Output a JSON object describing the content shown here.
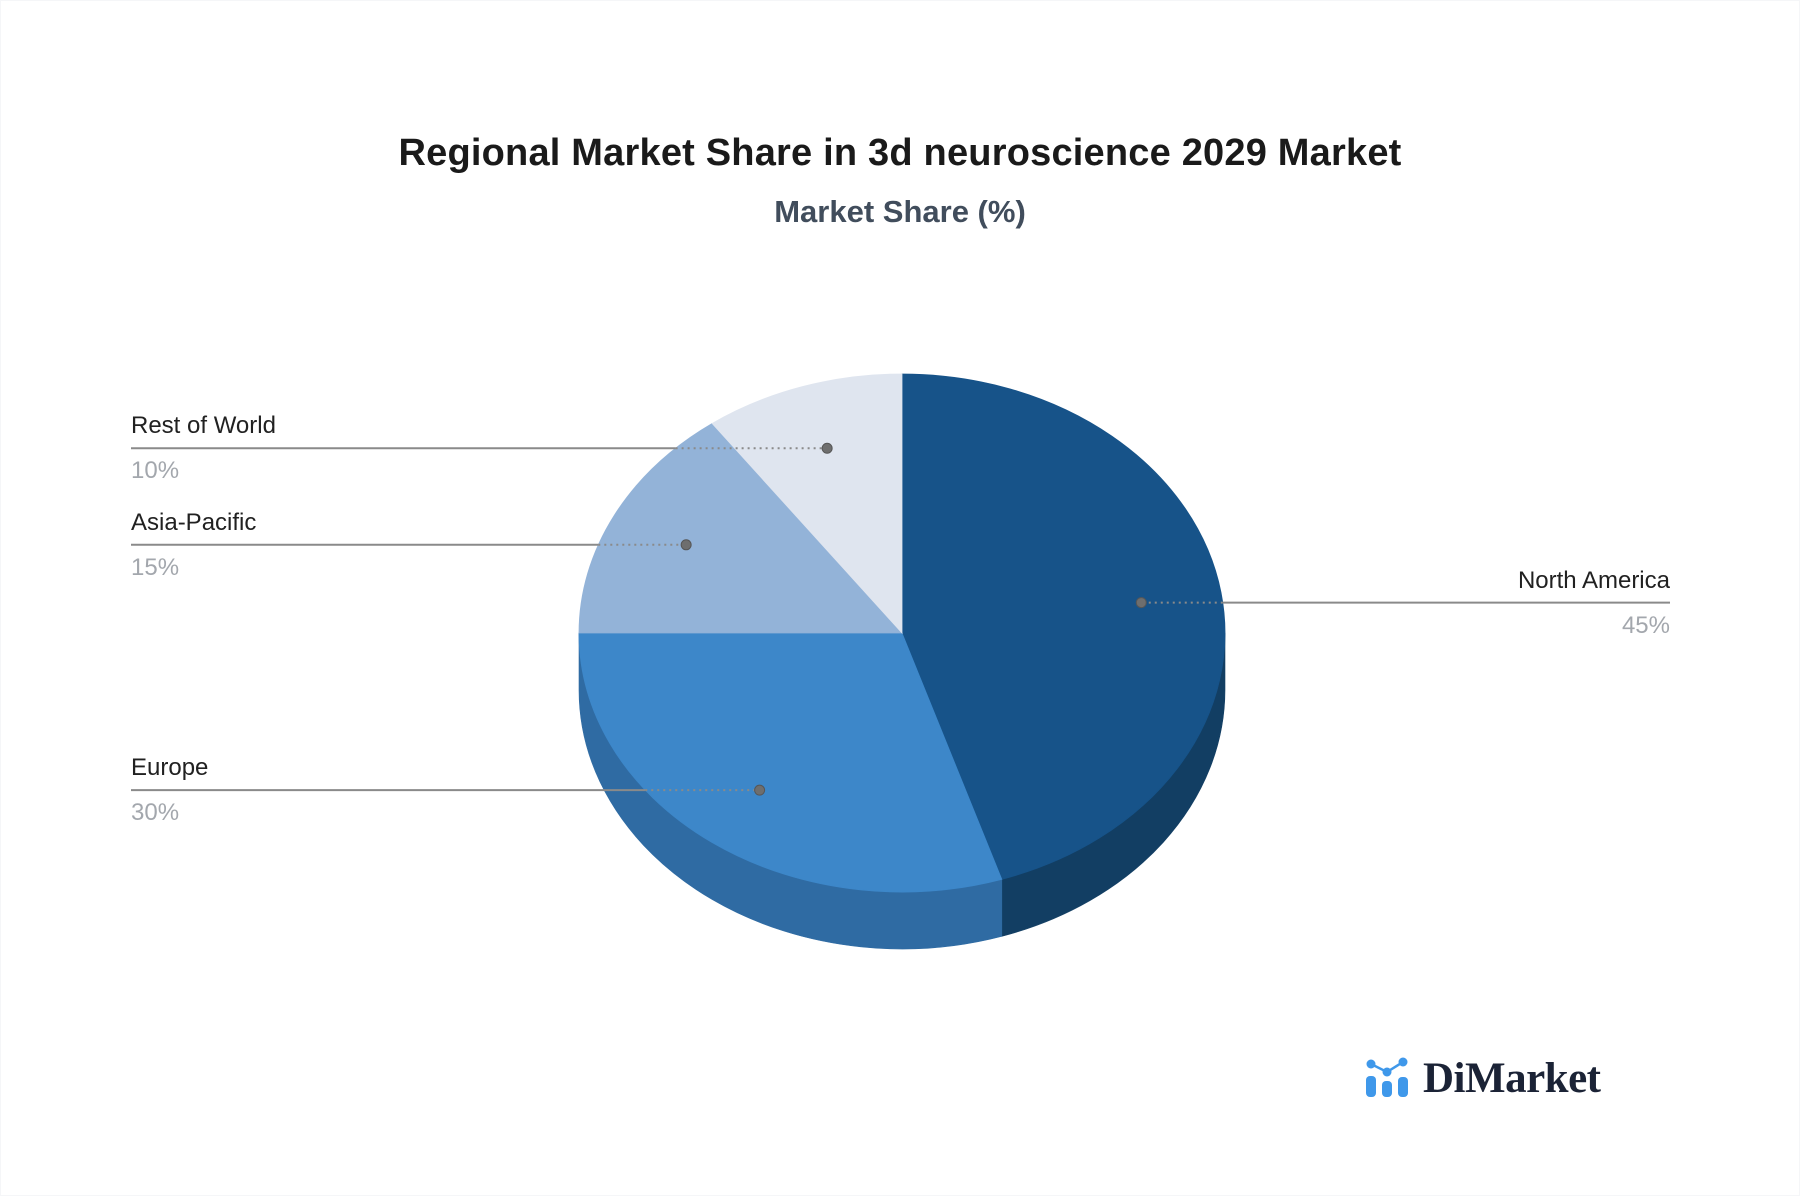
{
  "header": {
    "title": "Regional Market Share in 3d neuroscience 2029 Market",
    "subtitle": "Market Share (%)"
  },
  "chart_data": {
    "type": "pie",
    "style": "3d",
    "title": "Regional Market Share in 3d neuroscience 2029 Market",
    "subtitle": "Market Share (%)",
    "unit": "%",
    "start_angle_deg": 0,
    "direction": "clockwise",
    "legend_position": "none",
    "slices": [
      {
        "label": "North America",
        "value": 45,
        "display": "45%",
        "color": "#175389",
        "side_color": "#123e63",
        "label_side": "right"
      },
      {
        "label": "Europe",
        "value": 30,
        "display": "30%",
        "color": "#3d87c9",
        "side_color": "#2f6ba3",
        "label_side": "left"
      },
      {
        "label": "Asia-Pacific",
        "value": 15,
        "display": "15%",
        "color": "#93b3d8",
        "side_color": "#7693b5",
        "label_side": "left"
      },
      {
        "label": "Rest of World",
        "value": 10,
        "display": "10%",
        "color": "#dfe5ef",
        "side_color": "#b8c4d6",
        "label_side": "left"
      }
    ],
    "label_style": {
      "name_color": "#212121",
      "value_color": "#a3a7ad",
      "leader_color": "#8a8a8a",
      "anchor_dot_color": "#6e6e6e"
    }
  },
  "branding": {
    "logo_text": "DiMarket",
    "logo_text_color": "#1b2336",
    "logo_icon": "bar-chart-with-trend-dots-icon",
    "logo_icon_color": "#3f98ea"
  }
}
